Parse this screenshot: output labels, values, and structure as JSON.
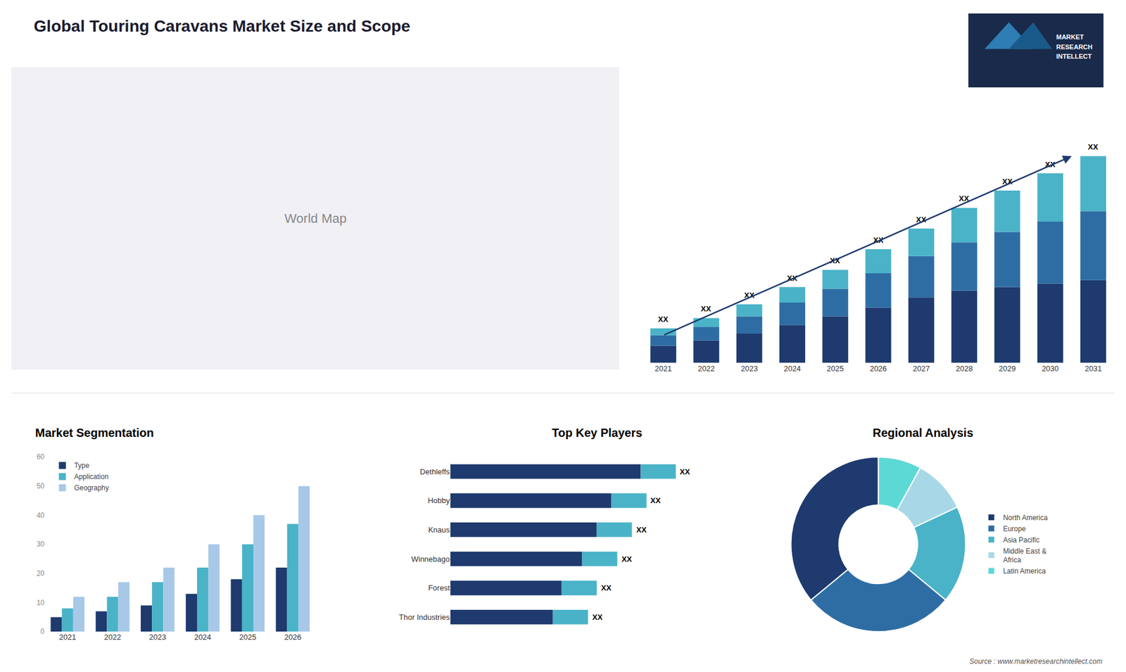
{
  "title": "Global Touring Caravans Market Size and Scope",
  "annotations": [
    "World Map",
    "MARKET",
    "RESEARCH",
    "INTELLECT",
    "Source : www.marketresearchintellect.com"
  ],
  "chart_data": [
    {
      "type": "bar",
      "stacked": true,
      "categories": [
        "2021",
        "2022",
        "2023",
        "2024",
        "2025",
        "2026",
        "2027",
        "2028",
        "2029",
        "2030",
        "2031"
      ],
      "series": [
        {
          "color": "#1e3a6e",
          "values": [
            5,
            6.5,
            8.5,
            11,
            13.5,
            16,
            19,
            21,
            22,
            23,
            24
          ]
        },
        {
          "color": "#2e6da4",
          "values": [
            3,
            4,
            5,
            6.5,
            8,
            10,
            12,
            14,
            16,
            18,
            20
          ]
        },
        {
          "color": "#4ab3c8",
          "values": [
            2,
            2.5,
            3.5,
            4.5,
            5.5,
            7,
            8,
            10,
            12,
            14,
            16
          ]
        }
      ],
      "ylim": [
        0,
        78
      ],
      "grid": false,
      "tick_labels": "x",
      "annotations": [
        "XX",
        "XX",
        "XX",
        "XX",
        "XX",
        "XX",
        "XX",
        "XX",
        "XX",
        "XX",
        "XX"
      ]
    },
    {
      "type": "bar",
      "title": "Market Segmentation",
      "categories": [
        "2021",
        "2022",
        "2023",
        "2024",
        "2025",
        "2026"
      ],
      "series": [
        {
          "name": "Type",
          "color": "#1e3a6e",
          "values": [
            5,
            7,
            9,
            13,
            18,
            22
          ]
        },
        {
          "name": "Application",
          "color": "#4ab3c8",
          "values": [
            8,
            12,
            17,
            22,
            30,
            37
          ]
        },
        {
          "name": "Geography",
          "color": "#a8c8e8",
          "values": [
            12,
            17,
            22,
            30,
            40,
            50
          ]
        }
      ],
      "ylim": [
        0,
        60
      ],
      "yticks": [
        0,
        10,
        20,
        30,
        40,
        50,
        60
      ],
      "grid": false,
      "legend": "upper left"
    },
    {
      "type": "bar",
      "title": "Top Key Players",
      "orientation": "horizontal",
      "stacked": true,
      "categories": [
        "Dethleffs",
        "Hobby",
        "Knaus",
        "Winnebago",
        "Forest",
        "Thor Industries"
      ],
      "series": [
        {
          "color": "#1e3a6e",
          "values": [
            0.65,
            0.55,
            0.5,
            0.45,
            0.38,
            0.35
          ]
        },
        {
          "color": "#4ab3c8",
          "values": [
            0.12,
            0.12,
            0.12,
            0.12,
            0.12,
            0.12
          ]
        }
      ],
      "xlim": [
        0,
        1
      ],
      "grid": false,
      "tick_labels": "y",
      "annotations": [
        "XX",
        "XX",
        "XX",
        "XX",
        "XX",
        "XX"
      ]
    },
    {
      "type": "pie",
      "title": "Regional Analysis",
      "categories": [
        "Latin America",
        "Middle East &\nAfrica",
        "Asia Pacific",
        "Europe",
        "North America"
      ],
      "values": [
        8,
        10,
        18,
        28,
        36
      ],
      "colors": [
        "#5dd9d5",
        "#a8d8e8",
        "#4ab3c8",
        "#2e6da4",
        "#1e3a6e"
      ],
      "legend": "right"
    }
  ]
}
